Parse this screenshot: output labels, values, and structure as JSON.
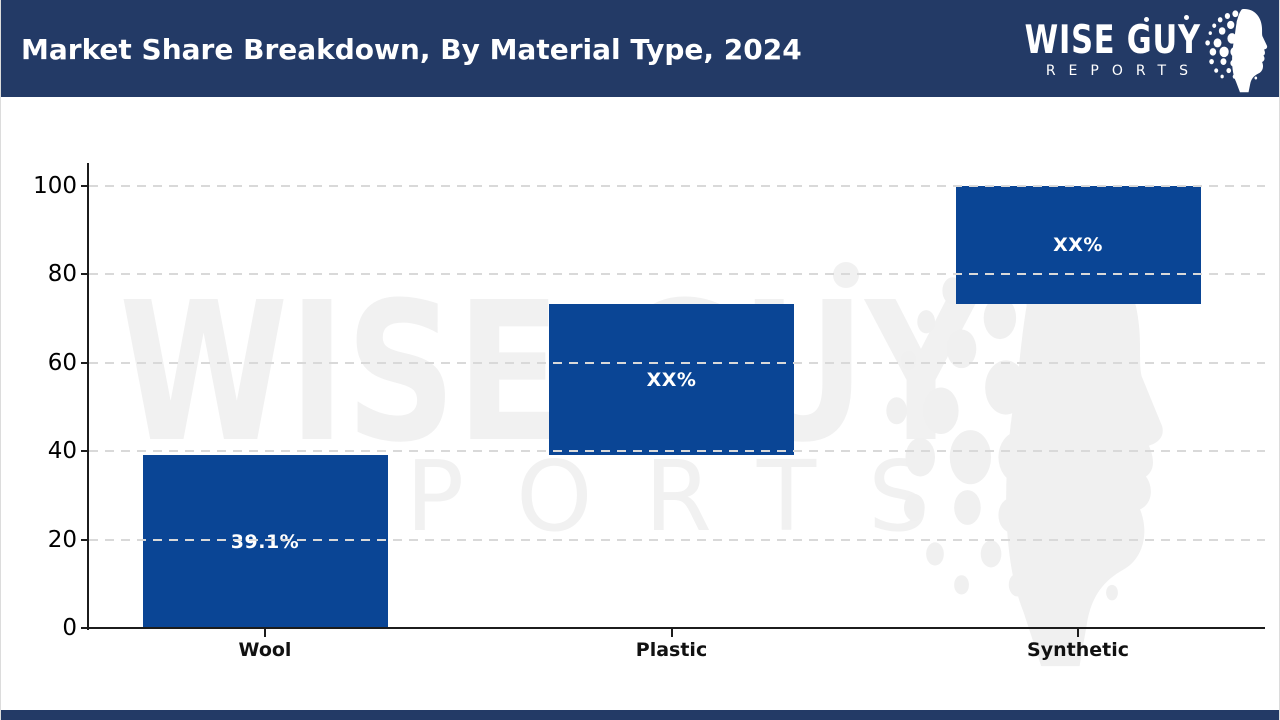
{
  "header": {
    "title": "Market Share Breakdown, By Material Type, 2024",
    "logo": {
      "wordmark": "WISE GUY",
      "subtext": "REPORTS"
    }
  },
  "watermark": {
    "wordmark": "WISE GUY",
    "subtext": "REPORTS"
  },
  "chart_data": {
    "type": "bar",
    "variant": "waterfall",
    "title": "Market Share Breakdown, By Material Type, 2024",
    "categories": [
      "Wool",
      "Plastic",
      "Synthetic"
    ],
    "series": [
      {
        "name": "Market share (%)",
        "segments": [
          {
            "category": "Wool",
            "start": 0,
            "end": 39.1,
            "label": "39.1%"
          },
          {
            "category": "Plastic",
            "start": 39.1,
            "end": 73.3,
            "label": "XX%"
          },
          {
            "category": "Synthetic",
            "start": 73.3,
            "end": 100,
            "label": "XX%"
          }
        ]
      }
    ],
    "bar_labels": [
      "39.1%",
      "XX%",
      "XX%"
    ],
    "ylim": [
      0,
      100
    ],
    "yticks": [
      0,
      20,
      40,
      60,
      80,
      100
    ],
    "xlabel": "",
    "ylabel": "",
    "grid": "horizontal-dashed",
    "legend": "none",
    "colors": {
      "bar": "#0a4595",
      "header": "#233a66",
      "gridline": "#d9d9d9",
      "watermark": "#f1f1f1",
      "axis": "#1c1c1c"
    }
  }
}
